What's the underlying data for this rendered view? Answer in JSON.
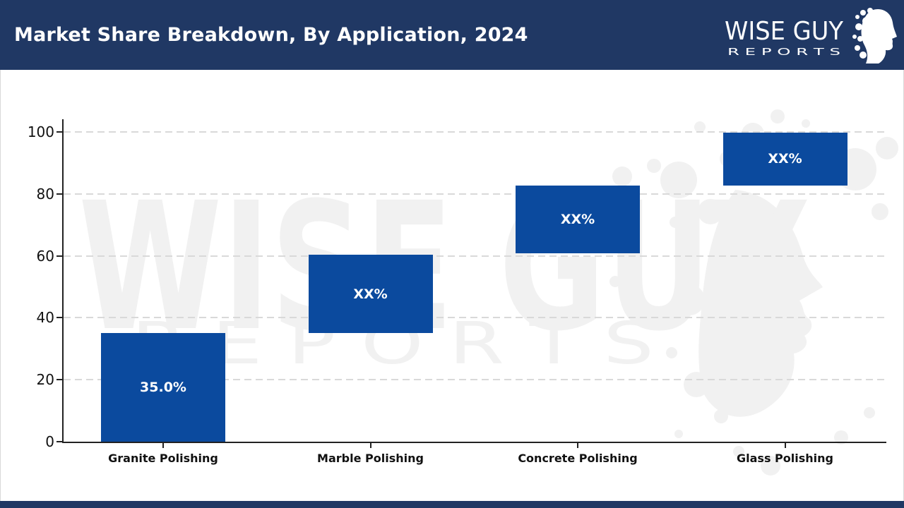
{
  "header": {
    "title": "Market Share Breakdown, By Application, 2024",
    "logo": {
      "brand_line1": "WISE GUY",
      "brand_line2": "R E P O R T S"
    }
  },
  "watermark": {
    "line1": "WISE GUY",
    "line2": "R E P O R T S"
  },
  "chart_data": {
    "type": "bar",
    "subtype": "waterfall",
    "title": "Market Share Breakdown, By Application, 2024",
    "categories": [
      "Granite Polishing",
      "Marble Polishing",
      "Concrete Polishing",
      "Glass Polishing"
    ],
    "segments": [
      {
        "category": "Granite Polishing",
        "label": "35.0%",
        "start": 0,
        "end": 35
      },
      {
        "category": "Marble Polishing",
        "label": "XX%",
        "start": 35,
        "end": 60.4
      },
      {
        "category": "Concrete Polishing",
        "label": "XX%",
        "start": 60.9,
        "end": 82.7
      },
      {
        "category": "Glass Polishing",
        "label": "XX%",
        "start": 82.7,
        "end": 99.8
      }
    ],
    "ylim": [
      0,
      100
    ],
    "yticks": [
      0,
      20,
      40,
      60,
      80,
      100
    ],
    "grid": "horizontal-dashed",
    "xlabel": "",
    "ylabel": ""
  },
  "colors": {
    "header_bg": "#203864",
    "footer_bg": "#203864",
    "bar": "#0b4a9e",
    "bar_label": "#ffffff",
    "axis": "#222222",
    "grid": "#d9d9d9",
    "watermark": "#f1f1f1",
    "background": "#ffffff"
  }
}
